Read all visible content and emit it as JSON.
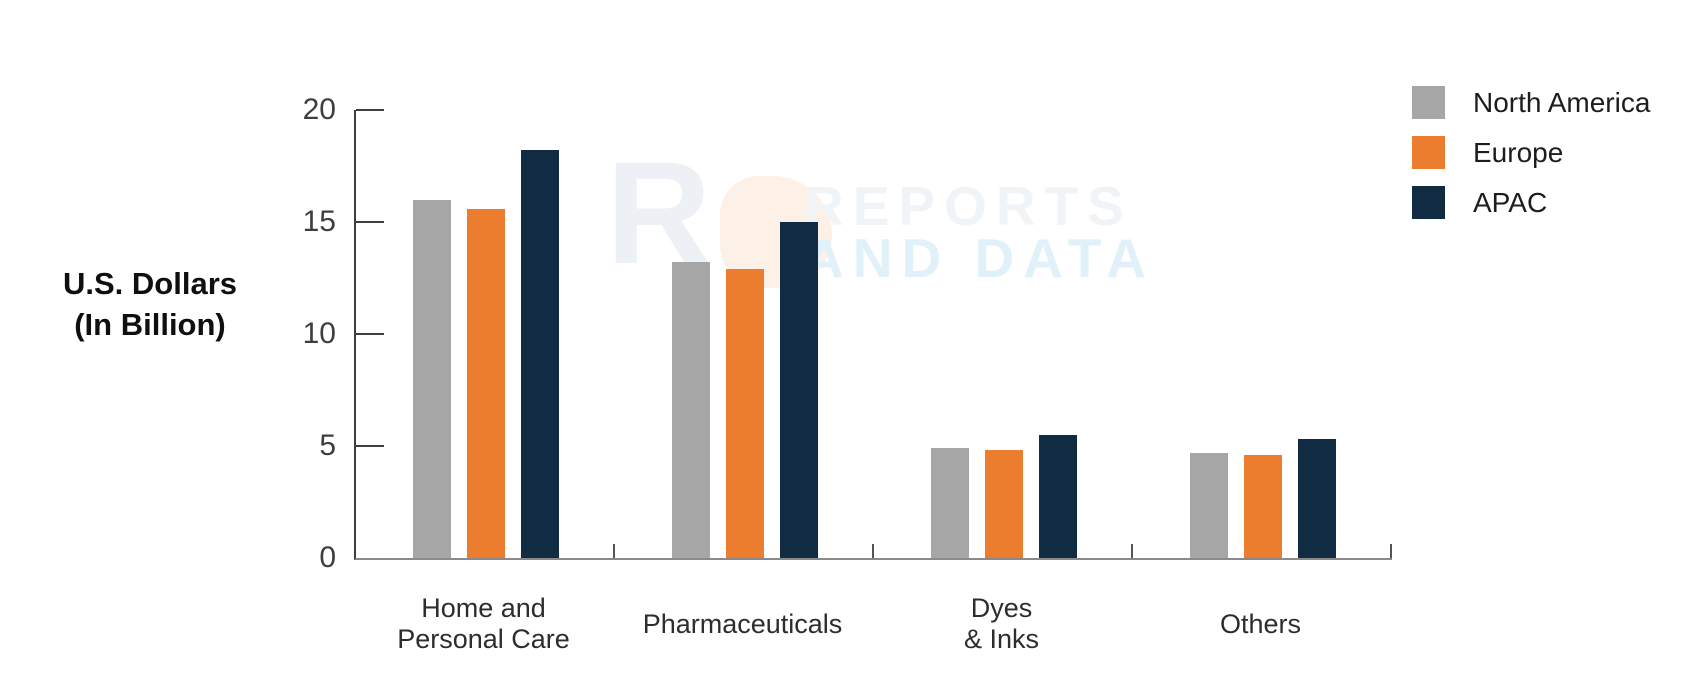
{
  "watermark": {
    "logo_letter": "R",
    "line1": "REPORTS",
    "line2": "AND DATA"
  },
  "y_axis_title_lines": [
    "U.S. Dollars",
    "(In Billion)"
  ],
  "chart_data": {
    "type": "bar",
    "title": "",
    "ylabel": "U.S. Dollars (In Billion)",
    "xlabel": "",
    "ylim": [
      0,
      20
    ],
    "yticks": [
      0,
      5,
      10,
      15,
      20
    ],
    "grid": false,
    "legend_position": "top-right",
    "categories": [
      "Home and Personal Care",
      "Pharmaceuticals",
      "Dyes & Inks",
      "Others"
    ],
    "categories_display": [
      [
        "Home and",
        "Personal Care"
      ],
      [
        "Pharmaceuticals"
      ],
      [
        "Dyes",
        "& Inks"
      ],
      [
        "Others"
      ]
    ],
    "series": [
      {
        "name": "North America",
        "color": "#a6a6a6",
        "values": [
          16.0,
          13.2,
          4.9,
          4.7
        ]
      },
      {
        "name": "Europe",
        "color": "#ec7d2e",
        "values": [
          15.6,
          12.9,
          4.8,
          4.6
        ]
      },
      {
        "name": "APAC",
        "color": "#112b42",
        "values": [
          18.2,
          15.0,
          5.5,
          5.3
        ]
      }
    ]
  }
}
